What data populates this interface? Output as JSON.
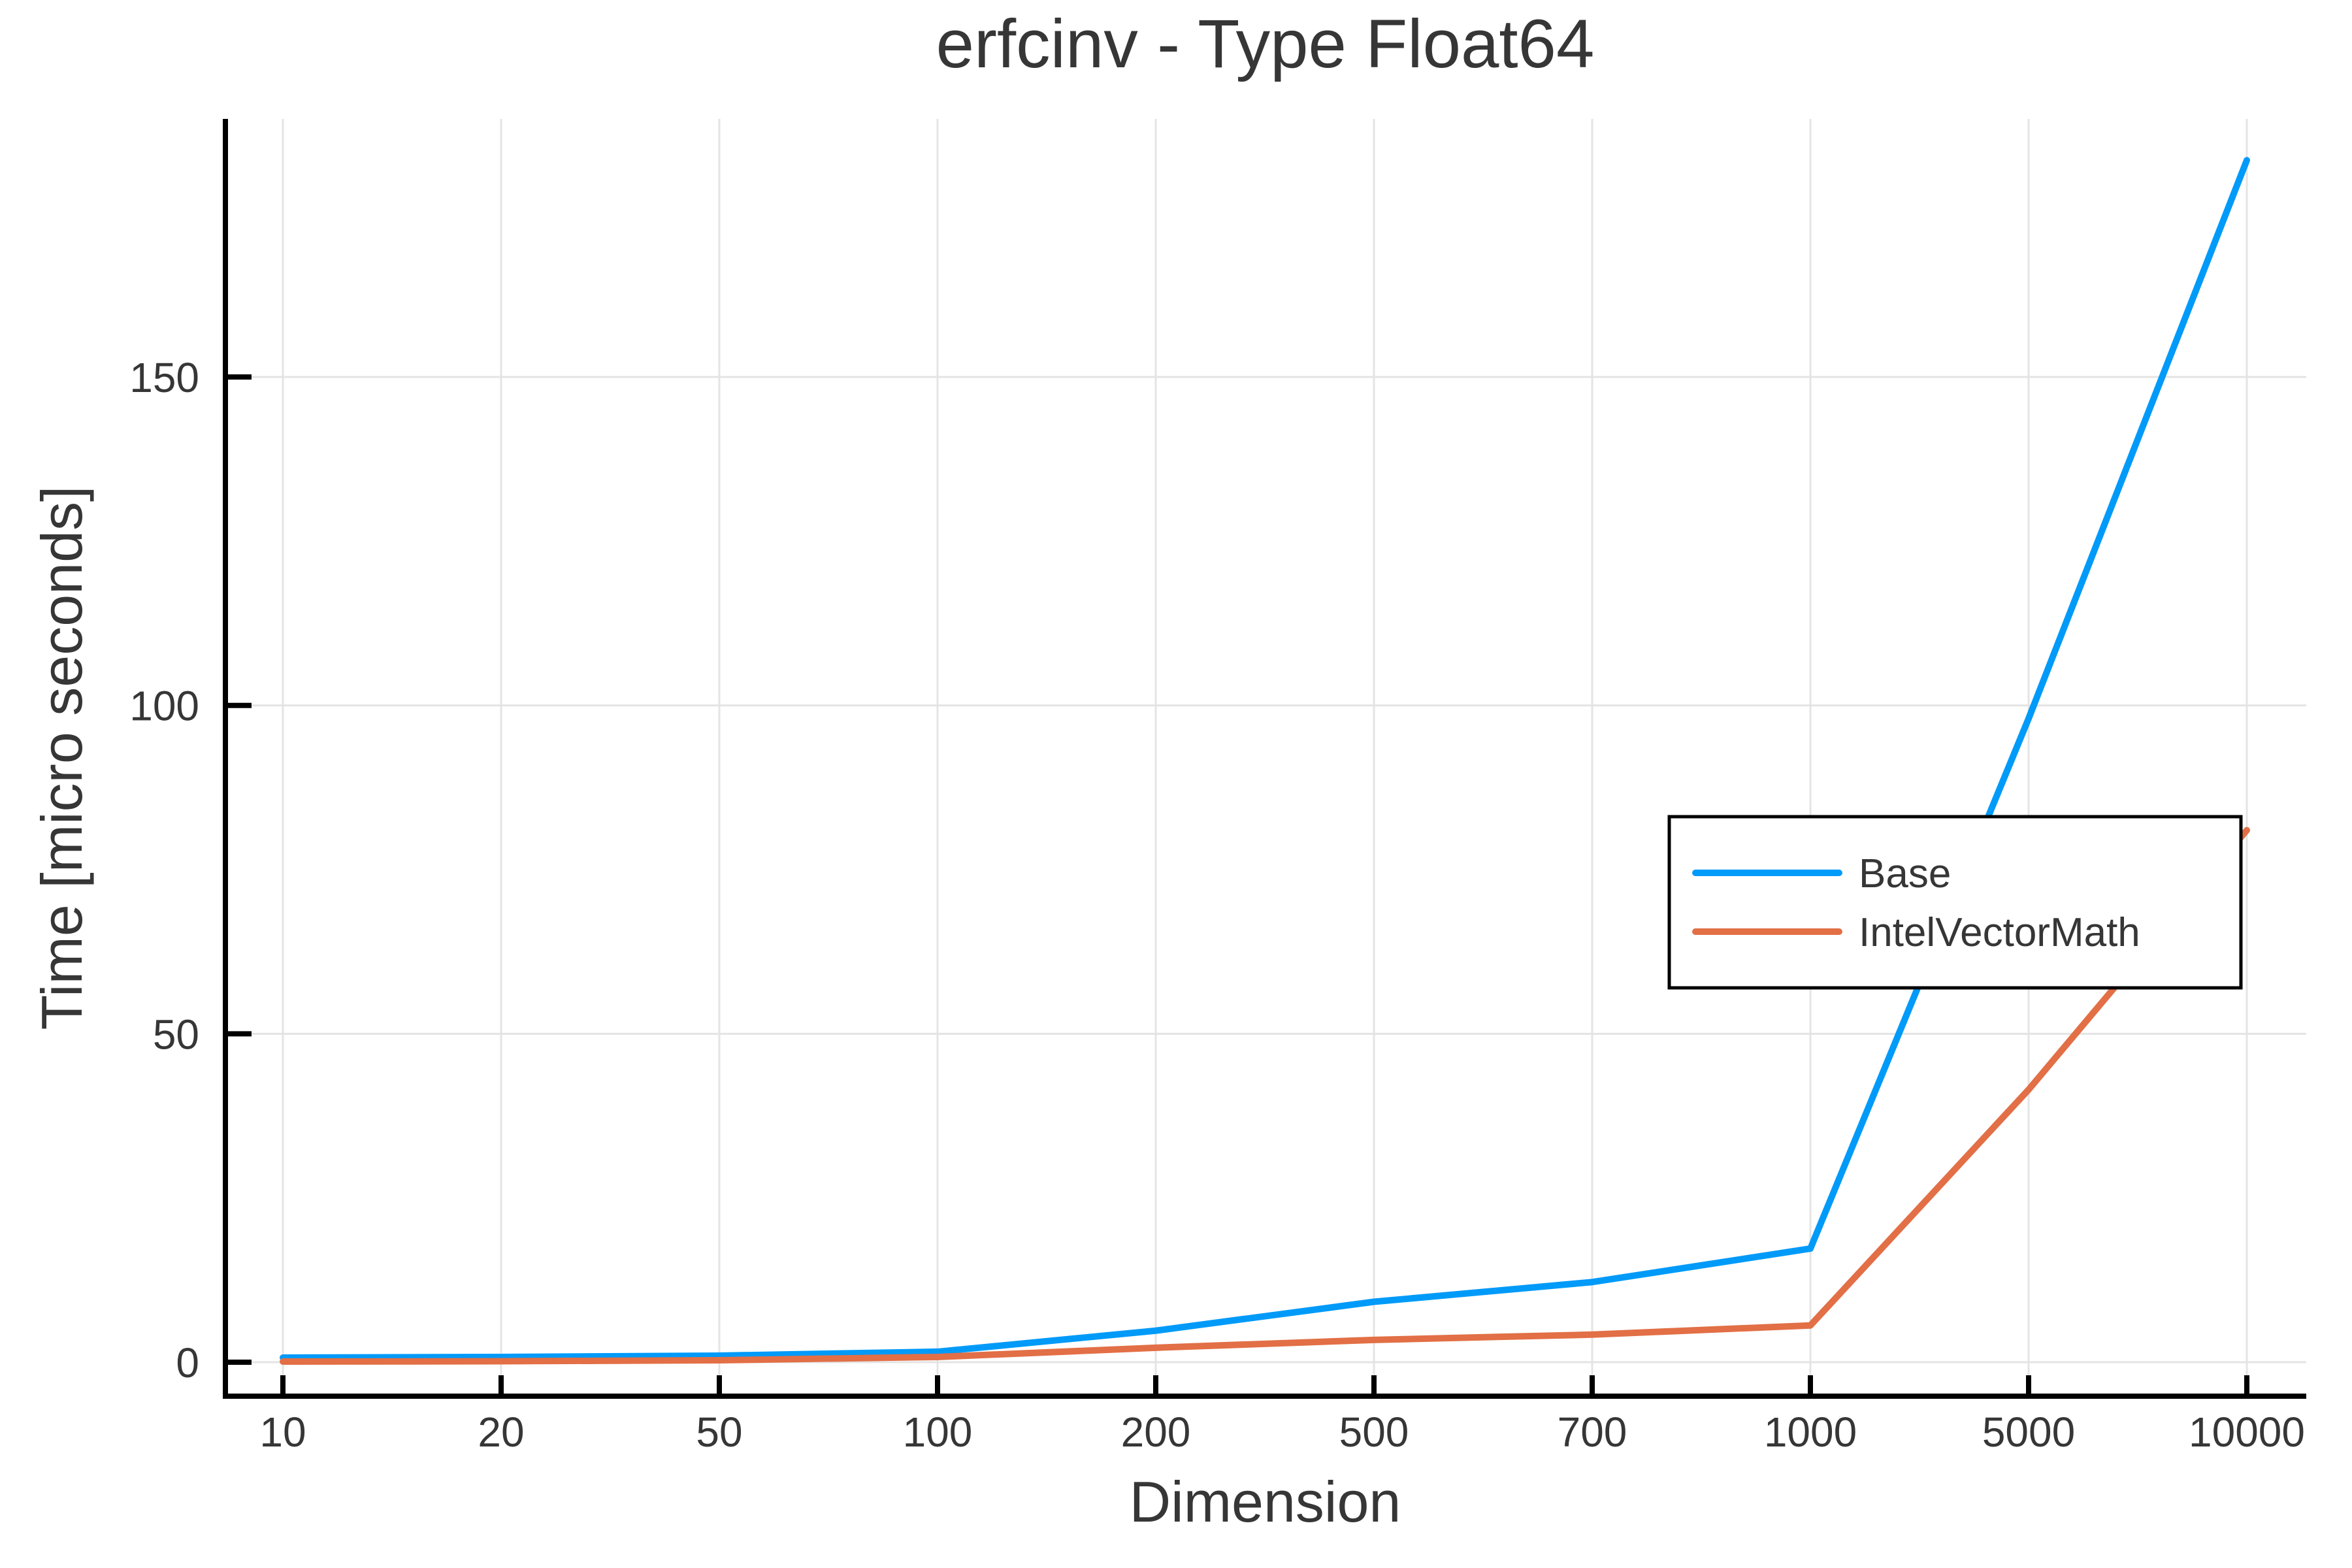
{
  "title": "erfcinv - Type Float64",
  "chart_data": {
    "type": "line",
    "title": "erfcinv - Type Float64",
    "xlabel": "Dimension",
    "ylabel": "Time [micro seconds]",
    "categories": [
      "10",
      "20",
      "50",
      "100",
      "200",
      "500",
      "700",
      "1000",
      "5000",
      "10000"
    ],
    "series": [
      {
        "name": "Base",
        "color": "#009af9",
        "values": [
          0.7,
          0.8,
          1.0,
          1.6,
          4.8,
          9.2,
          12.2,
          17.3,
          98,
          183
        ]
      },
      {
        "name": "IntelVectorMath",
        "color": "#e26f46",
        "values": [
          0.1,
          0.15,
          0.3,
          0.8,
          2.2,
          3.4,
          4.2,
          5.6,
          41.5,
          81
        ]
      }
    ],
    "yticks": [
      "0",
      "50",
      "100",
      "150"
    ],
    "ytick_values": [
      0,
      50,
      100,
      150
    ],
    "ylim": [
      0,
      190
    ],
    "x_scale": "categorical",
    "grid": true,
    "legend_position": "right-middle",
    "legend_entries": [
      "Base",
      "IntelVectorMath"
    ],
    "colors": {
      "axis": "#000000",
      "grid": "#e4e4e4",
      "text": "#363636",
      "background": "#ffffff",
      "legend_border": "#000000",
      "legend_background": "#ffffff",
      "series_base": "#009af9",
      "series_intelvectormath": "#e26f46"
    }
  }
}
